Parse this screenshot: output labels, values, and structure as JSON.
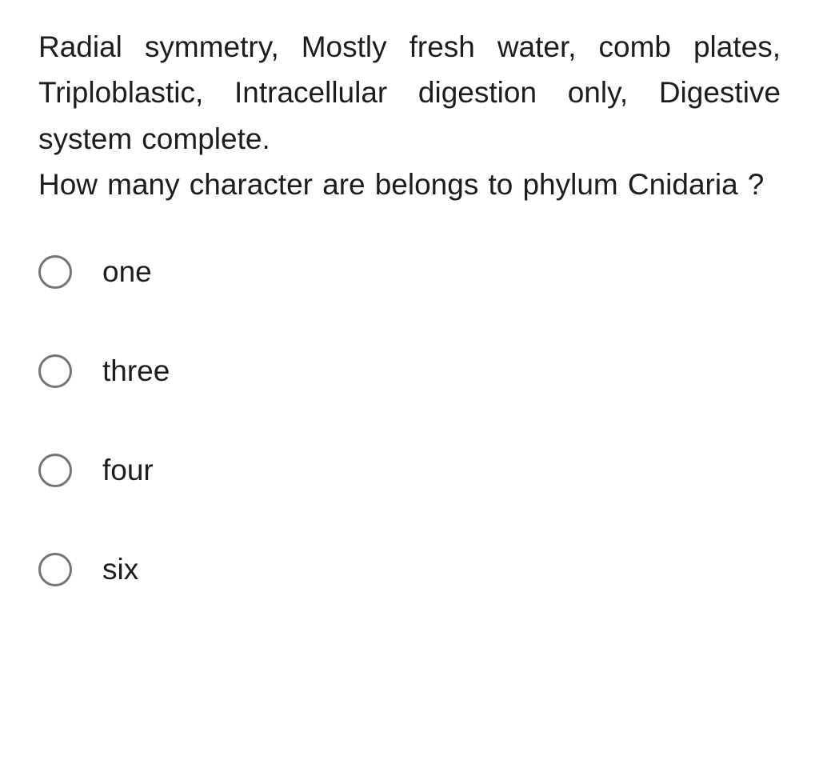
{
  "question": {
    "prompt_line1": "Radial symmetry, Mostly fresh water, comb plates, Triploblastic, Intracellular digestion only, Digestive system complete.",
    "prompt_line2": "How many character are belongs to phylum Cnidaria ?"
  },
  "options": [
    {
      "label": "one"
    },
    {
      "label": "three"
    },
    {
      "label": "four"
    },
    {
      "label": "six"
    }
  ],
  "style": {
    "text_color": "#1d1d1d",
    "radio_border_color": "#757575",
    "background_color": "#ffffff",
    "font_size_pt": 28
  }
}
